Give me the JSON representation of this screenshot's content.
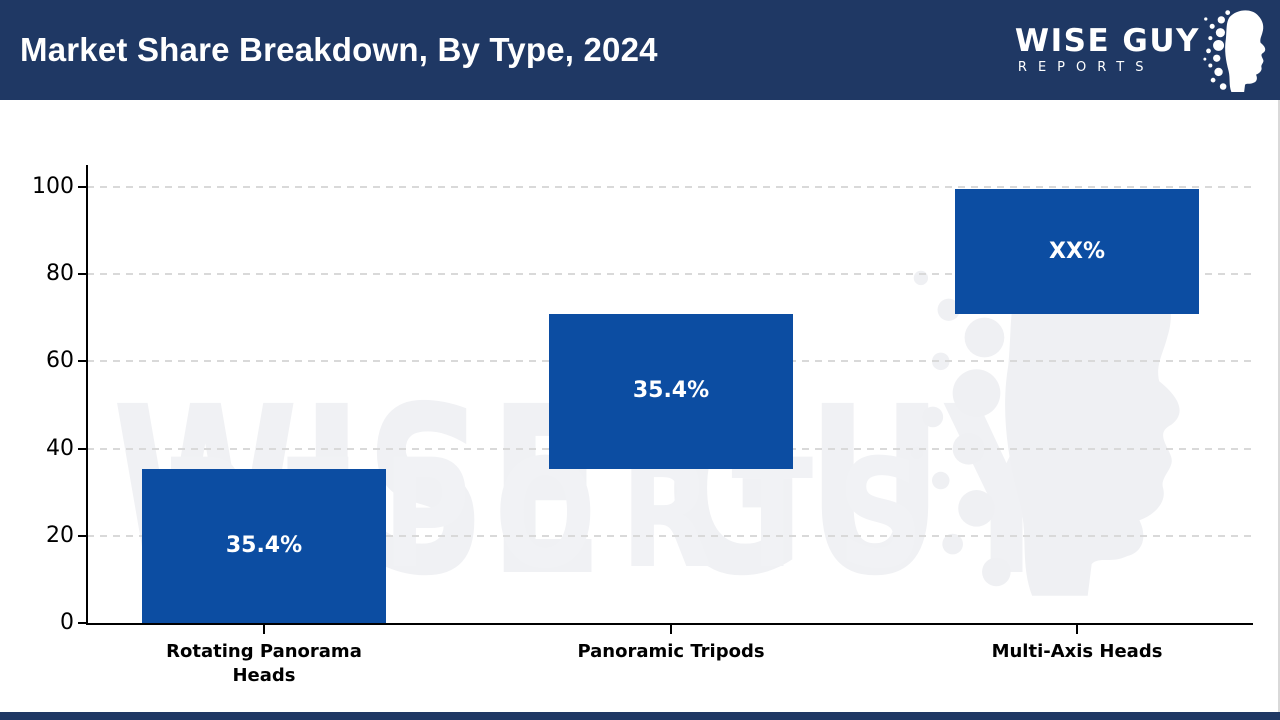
{
  "header": {
    "title": "Market Share Breakdown, By Type, 2024",
    "logo": {
      "line1": "WISE GUY",
      "line2": "REPORTS"
    }
  },
  "watermark": {
    "line1": "WISE GUY",
    "line2": "REPORTS"
  },
  "colors": {
    "header_bg": "#1f3864",
    "footer_bg": "#1f3864",
    "bar": "#0c4da2",
    "grid": "#d9d9d9",
    "axis": "#000000",
    "bar_label": "#ffffff",
    "watermark": "#f0f1f4"
  },
  "chart_data": {
    "type": "bar",
    "subtype": "waterfall",
    "title": "Market Share Breakdown, By Type, 2024",
    "unit": "percent",
    "categories": [
      "Rotating Panorama Heads",
      "Panoramic Tripods",
      "Multi-Axis Heads"
    ],
    "segments": [
      {
        "category": "Rotating Panorama Heads",
        "start": 0,
        "end": 35.4,
        "label": "35.4%"
      },
      {
        "category": "Panoramic Tripods",
        "start": 35.4,
        "end": 70.8,
        "label": "35.4%"
      },
      {
        "category": "Multi-Axis Heads",
        "start": 70.8,
        "end": 99.5,
        "label": "XX%"
      }
    ],
    "yticks": [
      0,
      20,
      40,
      60,
      80,
      100
    ],
    "ylim": [
      0,
      105
    ],
    "grid": "horizontal-dashed",
    "legend": "none",
    "xlabel": "",
    "ylabel": ""
  }
}
